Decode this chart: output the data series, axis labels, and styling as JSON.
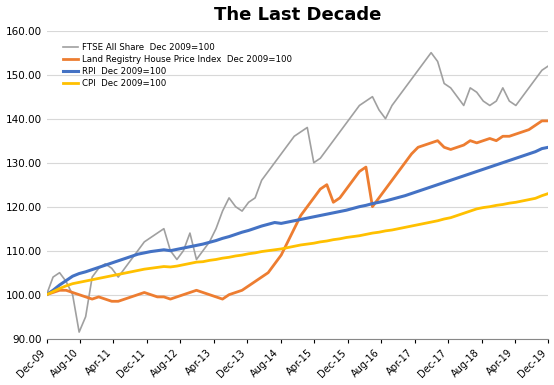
{
  "title": "The Last Decade",
  "title_fontsize": 13,
  "ylim": [
    90.0,
    160.0
  ],
  "yticks": [
    90.0,
    100.0,
    110.0,
    120.0,
    130.0,
    140.0,
    150.0,
    160.0
  ],
  "xtick_labels": [
    "Dec-09",
    "Aug-10",
    "Apr-11",
    "Dec-11",
    "Aug-12",
    "Apr-13",
    "Dec-13",
    "Aug-14",
    "Apr-15",
    "Dec-15",
    "Aug-16",
    "Apr-17",
    "Dec-17",
    "Aug-18",
    "Apr-19",
    "Dec-19"
  ],
  "legend": [
    {
      "label": "FTSE All Share  Dec 2009=100",
      "color": "#A0A0A0",
      "lw": 1.2
    },
    {
      "label": "Land Registry House Price Index  Dec 2009=100",
      "color": "#ED7D31",
      "lw": 2.0
    },
    {
      "label": "RPI  Dec 2009=100",
      "color": "#4472C4",
      "lw": 2.2
    },
    {
      "label": "CPI  Dec 2009=100",
      "color": "#FFC000",
      "lw": 2.0
    }
  ],
  "ftse": [
    100.0,
    104.0,
    105.0,
    103.0,
    100.0,
    91.5,
    95.0,
    104.0,
    106.0,
    107.0,
    106.0,
    104.0,
    106.0,
    108.0,
    110.0,
    112.0,
    113.0,
    114.0,
    115.0,
    110.0,
    108.0,
    110.0,
    114.0,
    108.0,
    110.0,
    112.0,
    115.0,
    119.0,
    122.0,
    120.0,
    119.0,
    121.0,
    122.0,
    126.0,
    128.0,
    130.0,
    132.0,
    134.0,
    136.0,
    137.0,
    138.0,
    130.0,
    131.0,
    133.0,
    135.0,
    137.0,
    139.0,
    141.0,
    143.0,
    144.0,
    145.0,
    142.0,
    140.0,
    143.0,
    145.0,
    147.0,
    149.0,
    151.0,
    153.0,
    155.0,
    153.0,
    148.0,
    147.0,
    145.0,
    143.0,
    147.0,
    146.0,
    144.0,
    143.0,
    144.0,
    147.0,
    144.0,
    143.0,
    145.0,
    147.0,
    149.0,
    151.0,
    152.0
  ],
  "hpi": [
    100.0,
    100.5,
    101.0,
    101.0,
    100.5,
    100.0,
    99.5,
    99.0,
    99.5,
    99.0,
    98.5,
    98.5,
    99.0,
    99.5,
    100.0,
    100.5,
    100.0,
    99.5,
    99.5,
    99.0,
    99.5,
    100.0,
    100.5,
    101.0,
    100.5,
    100.0,
    99.5,
    99.0,
    100.0,
    100.5,
    101.0,
    102.0,
    103.0,
    104.0,
    105.0,
    107.0,
    109.0,
    112.0,
    115.0,
    118.0,
    120.0,
    122.0,
    124.0,
    125.0,
    121.0,
    122.0,
    124.0,
    126.0,
    128.0,
    129.0,
    120.0,
    122.0,
    124.0,
    126.0,
    128.0,
    130.0,
    132.0,
    133.5,
    134.0,
    134.5,
    135.0,
    133.5,
    133.0,
    133.5,
    134.0,
    135.0,
    134.5,
    135.0,
    135.5,
    135.0,
    136.0,
    136.0,
    136.5,
    137.0,
    137.5,
    138.5,
    139.5,
    139.5
  ],
  "rpi": [
    100.0,
    101.0,
    102.2,
    103.2,
    104.2,
    104.8,
    105.2,
    105.7,
    106.2,
    106.7,
    107.2,
    107.7,
    108.2,
    108.7,
    109.2,
    109.5,
    109.8,
    110.0,
    110.2,
    110.0,
    110.3,
    110.6,
    110.9,
    111.2,
    111.5,
    111.9,
    112.3,
    112.8,
    113.2,
    113.7,
    114.2,
    114.6,
    115.1,
    115.6,
    116.0,
    116.4,
    116.2,
    116.5,
    116.8,
    117.1,
    117.4,
    117.7,
    118.0,
    118.3,
    118.6,
    118.9,
    119.2,
    119.6,
    120.0,
    120.3,
    120.7,
    121.0,
    121.3,
    121.7,
    122.1,
    122.5,
    123.0,
    123.5,
    124.0,
    124.5,
    125.0,
    125.5,
    126.0,
    126.5,
    127.0,
    127.5,
    128.0,
    128.5,
    129.0,
    129.5,
    130.0,
    130.5,
    131.0,
    131.5,
    132.0,
    132.5,
    133.2,
    133.5
  ],
  "cpi": [
    100.0,
    100.7,
    101.4,
    102.0,
    102.5,
    102.8,
    103.1,
    103.4,
    103.7,
    104.0,
    104.3,
    104.6,
    104.9,
    105.2,
    105.5,
    105.8,
    106.0,
    106.2,
    106.4,
    106.3,
    106.5,
    106.8,
    107.1,
    107.4,
    107.5,
    107.8,
    108.0,
    108.3,
    108.5,
    108.8,
    109.0,
    109.3,
    109.5,
    109.8,
    110.0,
    110.2,
    110.4,
    110.7,
    111.0,
    111.3,
    111.5,
    111.7,
    112.0,
    112.2,
    112.5,
    112.7,
    113.0,
    113.2,
    113.4,
    113.7,
    114.0,
    114.2,
    114.5,
    114.7,
    115.0,
    115.3,
    115.6,
    115.9,
    116.2,
    116.5,
    116.8,
    117.2,
    117.5,
    118.0,
    118.5,
    119.0,
    119.5,
    119.8,
    120.0,
    120.3,
    120.5,
    120.8,
    121.0,
    121.3,
    121.6,
    121.9,
    122.5,
    123.0
  ]
}
